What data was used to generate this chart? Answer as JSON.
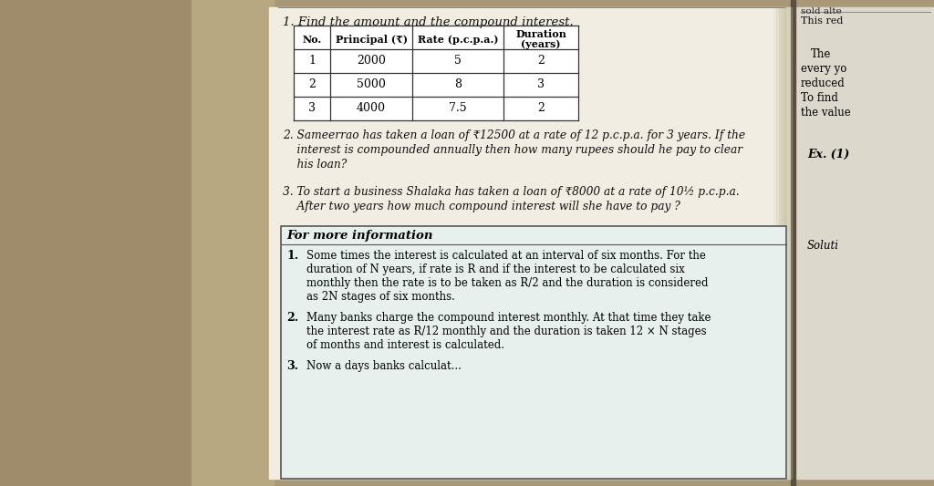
{
  "bg_left_color": "#b8a882",
  "bg_right_color": "#c8bea8",
  "page_color": "#f0ece2",
  "page_right_color": "#e8e4da",
  "title": "1. Find the amount and the compound interest.",
  "table_headers": [
    "No.",
    "Principal (₹)",
    "Rate (p.c.p.a.)",
    "Duration\n(years)"
  ],
  "table_rows": [
    [
      "1",
      "2000",
      "5",
      "2"
    ],
    [
      "2",
      "5000",
      "8",
      "3"
    ],
    [
      "3",
      "4000",
      "7.5",
      "2"
    ]
  ],
  "q2_lines": [
    "2. Sameerrao has taken a loan of ₹12500 at a rate of 12 p.c.p.a. for 3 years. If the",
    "    interest is compounded annually then how many rupees should he pay to clear",
    "    his loan?"
  ],
  "q3_lines": [
    "3. To start a business Shalaka has taken a loan of ₹8000 at a rate of 10½ p.c.p.a.",
    "    After two years how much compound interest will she have to pay ?"
  ],
  "box_title": "For more information",
  "info1_lines": [
    "Some times the interest is calculated at an interval of six months. For the",
    "duration of N years, if rate is R and if the interest to be calculated six",
    "monthly then the rate is to be taken as R/2 and the duration is considered",
    "as 2N stages of six months."
  ],
  "info2_lines": [
    "Many banks charge the compound interest monthly. At that time they take",
    "the interest rate as R/12 monthly and the duration is taken 12 × N stages",
    "of months and interest is calculated."
  ],
  "info3_line": "Now a days banks calculat...",
  "right_col_texts": [
    "sold alte",
    "This red"
  ],
  "right_col2_texts": [
    "The",
    "every yo",
    "reduced",
    "To find",
    "the valuе"
  ],
  "right_ex": "Ex. (1)",
  "right_soluti": "Soluti"
}
